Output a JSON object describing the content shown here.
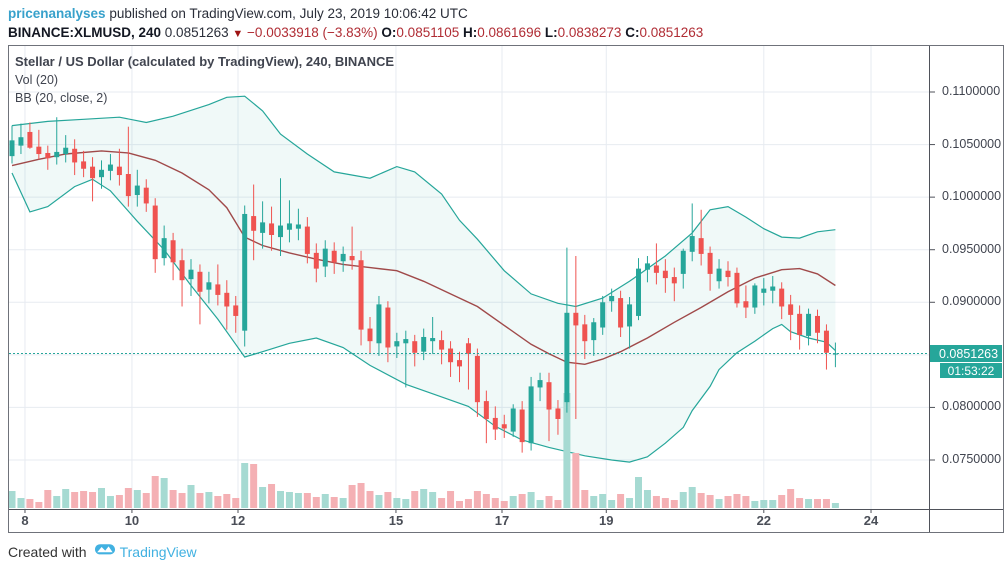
{
  "header": {
    "publisher": "pricenanalyses",
    "published_text": " published on TradingView.com, July 23, 2019 10:06:42 UTC"
  },
  "symbol_bar": {
    "symbol": "BINANCE:XLMUSD, 240",
    "price": "0.0851263",
    "arrow": "▼",
    "change": "−0.0033918 (−3.83%)",
    "o_label": "O:",
    "o_value": "0.0851105",
    "h_label": "H:",
    "h_value": "0.0861696",
    "l_label": "L:",
    "l_value": "0.0838273",
    "c_label": "C:",
    "c_value": "0.0851263"
  },
  "legend": {
    "title": "Stellar / US Dollar (calculated by TradingView), 240, BINANCE",
    "vol": "Vol (20)",
    "bb": "BB (20, close, 2)"
  },
  "price_axis": {
    "labels": [
      {
        "text": "0.1100000",
        "price": 0.11
      },
      {
        "text": "0.1050000",
        "price": 0.105
      },
      {
        "text": "0.1000000",
        "price": 0.1
      },
      {
        "text": "0.0950000",
        "price": 0.095
      },
      {
        "text": "0.0900000",
        "price": 0.09
      },
      {
        "text": "0.0800000",
        "price": 0.08
      },
      {
        "text": "0.0750000",
        "price": 0.075
      }
    ],
    "last_price_label": "0.0851263",
    "countdown": "01:53:22"
  },
  "time_axis": {
    "labels": [
      {
        "text": "8",
        "i": 1.45
      },
      {
        "text": "10",
        "i": 13.4
      },
      {
        "text": "12",
        "i": 25.25
      },
      {
        "text": "15",
        "i": 42.9
      },
      {
        "text": "17",
        "i": 54.75
      },
      {
        "text": "19",
        "i": 66.4
      },
      {
        "text": "22",
        "i": 84.0
      },
      {
        "text": "24",
        "i": 95.98
      }
    ]
  },
  "footer": {
    "created_with": "Created with",
    "brand": "TradingView"
  },
  "colors": {
    "up": "#26a69a",
    "down": "#ef5350",
    "vol_up": "#a6dad2",
    "vol_down": "#f4b0b4",
    "bb_band": "#26a69a",
    "bb_fill": "rgba(38,166,154,0.07)",
    "bb_basis": "#a04a4a",
    "grid": "#e7ebf1",
    "last_price_line": "#26a69a",
    "badge_bg": "#26a69a"
  },
  "chart_data": {
    "type": "candlestick",
    "title": "Stellar / US Dollar (calculated by TradingView), 240, BINANCE",
    "indicators": [
      "Vol (20)",
      "BB (20, close, 2)"
    ],
    "y_axis": {
      "max_price": 0.11,
      "min_price": 0.0746,
      "tick_step": 0.005
    },
    "last_price": 0.0851263,
    "grid_extra_prices": [
      0.085
    ],
    "bars": [
      [
        0.1039,
        0.1068,
        0.1032,
        0.1054
      ],
      [
        0.1049,
        0.107,
        0.1041,
        0.1057
      ],
      [
        0.1062,
        0.1071,
        0.1046,
        0.1047
      ],
      [
        0.1048,
        0.1064,
        0.1036,
        0.1041
      ],
      [
        0.1042,
        0.1049,
        0.1026,
        0.1037
      ],
      [
        0.1038,
        0.1076,
        0.1031,
        0.1043
      ],
      [
        0.1041,
        0.1059,
        0.1033,
        0.1047
      ],
      [
        0.1046,
        0.1055,
        0.1021,
        0.1033
      ],
      [
        0.1034,
        0.1044,
        0.1019,
        0.1027
      ],
      [
        0.1029,
        0.1038,
        0.0996,
        0.1018
      ],
      [
        0.1019,
        0.1035,
        0.1008,
        0.1026
      ],
      [
        0.1025,
        0.1041,
        0.1016,
        0.1031
      ],
      [
        0.1029,
        0.1046,
        0.1011,
        0.1021
      ],
      [
        0.1022,
        0.1067,
        0.0991,
        0.1001
      ],
      [
        0.1002,
        0.1026,
        0.0991,
        0.1011
      ],
      [
        0.1009,
        0.1017,
        0.0986,
        0.0994
      ],
      [
        0.0992,
        0.0999,
        0.0928,
        0.0941
      ],
      [
        0.0942,
        0.0973,
        0.0935,
        0.0961
      ],
      [
        0.0959,
        0.0966,
        0.0921,
        0.0938
      ],
      [
        0.094,
        0.0951,
        0.0896,
        0.0921
      ],
      [
        0.0922,
        0.0941,
        0.0906,
        0.0931
      ],
      [
        0.0929,
        0.0936,
        0.0879,
        0.091
      ],
      [
        0.0912,
        0.0929,
        0.0899,
        0.0919
      ],
      [
        0.0917,
        0.0936,
        0.0897,
        0.0907
      ],
      [
        0.0909,
        0.0921,
        0.0874,
        0.0896
      ],
      [
        0.0897,
        0.0906,
        0.0871,
        0.0887
      ],
      [
        0.0873,
        0.0992,
        0.0858,
        0.0984
      ],
      [
        0.0982,
        0.1012,
        0.094,
        0.0968
      ],
      [
        0.0966,
        0.0996,
        0.0951,
        0.0976
      ],
      [
        0.0975,
        0.0991,
        0.0949,
        0.0964
      ],
      [
        0.0962,
        0.1018,
        0.0944,
        0.0973
      ],
      [
        0.0969,
        0.0997,
        0.0957,
        0.0975
      ],
      [
        0.097,
        0.0989,
        0.0959,
        0.0974
      ],
      [
        0.0972,
        0.0981,
        0.0937,
        0.0946
      ],
      [
        0.0947,
        0.0956,
        0.0919,
        0.0932
      ],
      [
        0.0934,
        0.0959,
        0.0924,
        0.0951
      ],
      [
        0.0949,
        0.0957,
        0.0927,
        0.0938
      ],
      [
        0.0939,
        0.0953,
        0.0929,
        0.0946
      ],
      [
        0.0944,
        0.0972,
        0.0931,
        0.094
      ],
      [
        0.094,
        0.0949,
        0.0859,
        0.0874
      ],
      [
        0.0875,
        0.0886,
        0.0851,
        0.0863
      ],
      [
        0.0861,
        0.0906,
        0.0849,
        0.0898
      ],
      [
        0.0895,
        0.0901,
        0.0843,
        0.0857
      ],
      [
        0.0858,
        0.0871,
        0.0847,
        0.0863
      ],
      [
        0.0861,
        0.0873,
        0.0819,
        0.0865
      ],
      [
        0.0863,
        0.0869,
        0.0839,
        0.0852
      ],
      [
        0.0853,
        0.0875,
        0.0845,
        0.0867
      ],
      [
        0.0863,
        0.0886,
        0.0851,
        0.0866
      ],
      [
        0.0864,
        0.0873,
        0.0841,
        0.0855
      ],
      [
        0.0856,
        0.0863,
        0.0829,
        0.0843
      ],
      [
        0.0845,
        0.0853,
        0.0824,
        0.0839
      ],
      [
        0.0861,
        0.0866,
        0.0817,
        0.0851
      ],
      [
        0.0849,
        0.0856,
        0.0791,
        0.0805
      ],
      [
        0.0806,
        0.0816,
        0.0766,
        0.0789
      ],
      [
        0.079,
        0.0801,
        0.0769,
        0.0779
      ],
      [
        0.0784,
        0.0793,
        0.0771,
        0.078
      ],
      [
        0.0777,
        0.0803,
        0.0772,
        0.0799
      ],
      [
        0.0798,
        0.0806,
        0.0757,
        0.0767
      ],
      [
        0.0766,
        0.0829,
        0.0759,
        0.082
      ],
      [
        0.0819,
        0.0833,
        0.0806,
        0.0826
      ],
      [
        0.0824,
        0.0833,
        0.0768,
        0.0798
      ],
      [
        0.0799,
        0.0807,
        0.0774,
        0.0789
      ],
      [
        0.0805,
        0.0952,
        0.0795,
        0.089
      ],
      [
        0.089,
        0.0944,
        0.0789,
        0.0878
      ],
      [
        0.0879,
        0.0888,
        0.0846,
        0.0863
      ],
      [
        0.0864,
        0.0885,
        0.0849,
        0.0881
      ],
      [
        0.0876,
        0.0906,
        0.0869,
        0.09
      ],
      [
        0.0901,
        0.0913,
        0.0891,
        0.0906
      ],
      [
        0.0904,
        0.0911,
        0.0867,
        0.0876
      ],
      [
        0.0877,
        0.0905,
        0.0856,
        0.0898
      ],
      [
        0.0887,
        0.0942,
        0.0883,
        0.0932
      ],
      [
        0.0931,
        0.0944,
        0.0919,
        0.0937
      ],
      [
        0.0935,
        0.0956,
        0.0917,
        0.0928
      ],
      [
        0.093,
        0.0941,
        0.0909,
        0.0923
      ],
      [
        0.0924,
        0.0933,
        0.0901,
        0.0918
      ],
      [
        0.0927,
        0.0951,
        0.0913,
        0.0949
      ],
      [
        0.0948,
        0.0994,
        0.0939,
        0.0963
      ],
      [
        0.0961,
        0.0988,
        0.0935,
        0.0946
      ],
      [
        0.0947,
        0.0953,
        0.0911,
        0.0927
      ],
      [
        0.092,
        0.0941,
        0.0913,
        0.0932
      ],
      [
        0.093,
        0.0939,
        0.0915,
        0.0924
      ],
      [
        0.0928,
        0.0933,
        0.0895,
        0.0899
      ],
      [
        0.0901,
        0.0916,
        0.0885,
        0.0895
      ],
      [
        0.0895,
        0.0918,
        0.0889,
        0.0916
      ],
      [
        0.0909,
        0.0923,
        0.0897,
        0.0913
      ],
      [
        0.0911,
        0.0925,
        0.0899,
        0.0915
      ],
      [
        0.0913,
        0.0919,
        0.0884,
        0.0896
      ],
      [
        0.0898,
        0.0907,
        0.0864,
        0.0888
      ],
      [
        0.0889,
        0.0897,
        0.0855,
        0.0869
      ],
      [
        0.0868,
        0.0894,
        0.0859,
        0.0889
      ],
      [
        0.0887,
        0.0893,
        0.0861,
        0.0871
      ],
      [
        0.0873,
        0.0879,
        0.0836,
        0.0852
      ],
      [
        0.0851105,
        0.0861696,
        0.0838273,
        0.0851263
      ]
    ],
    "volumes_rel": [
      17,
      10,
      9,
      6,
      18,
      12,
      19,
      16,
      17,
      16,
      20,
      12,
      13,
      20,
      18,
      15,
      32,
      30,
      18,
      15,
      23,
      15,
      16,
      12,
      14,
      10,
      45,
      44,
      21,
      24,
      17,
      16,
      15,
      15,
      11,
      14,
      11,
      10,
      23,
      25,
      17,
      13,
      16,
      10,
      9,
      17,
      19,
      16,
      10,
      17,
      7,
      9,
      17,
      14,
      10,
      7,
      12,
      14,
      16,
      8,
      12,
      8,
      115,
      55,
      18,
      12,
      14,
      8,
      14,
      10,
      31,
      18,
      12,
      10,
      8,
      16,
      21,
      15,
      13,
      9,
      12,
      14,
      12,
      7,
      8,
      8,
      13,
      19,
      10,
      9,
      9,
      9,
      5
    ],
    "bollinger": {
      "upper": [
        [
          0,
          0.1068
        ],
        [
          4,
          0.1072
        ],
        [
          8,
          0.1074
        ],
        [
          12,
          0.1076
        ],
        [
          15,
          0.1071
        ],
        [
          18,
          0.1077
        ],
        [
          22,
          0.1088
        ],
        [
          24,
          0.1095
        ],
        [
          26,
          0.1096
        ],
        [
          28,
          0.1082
        ],
        [
          30,
          0.106
        ],
        [
          33,
          0.1041
        ],
        [
          36,
          0.1024
        ],
        [
          40,
          0.1018
        ],
        [
          43,
          0.1029
        ],
        [
          45,
          0.1024
        ],
        [
          48,
          0.1003
        ],
        [
          50,
          0.0978
        ],
        [
          52,
          0.096
        ],
        [
          55,
          0.093
        ],
        [
          58,
          0.0908
        ],
        [
          61,
          0.0899
        ],
        [
          63,
          0.0896
        ],
        [
          66,
          0.0904
        ],
        [
          69,
          0.092
        ],
        [
          73,
          0.0944
        ],
        [
          76,
          0.0966
        ],
        [
          78,
          0.0988
        ],
        [
          80,
          0.0991
        ],
        [
          82,
          0.0981
        ],
        [
          84,
          0.097
        ],
        [
          86,
          0.0962
        ],
        [
          88,
          0.0961
        ],
        [
          90,
          0.0967
        ],
        [
          92,
          0.0969
        ]
      ],
      "basis": [
        [
          0,
          0.103
        ],
        [
          3,
          0.1036
        ],
        [
          6,
          0.1041
        ],
        [
          10,
          0.1044
        ],
        [
          13,
          0.1042
        ],
        [
          16,
          0.1035
        ],
        [
          19,
          0.1023
        ],
        [
          22,
          0.1007
        ],
        [
          24,
          0.099
        ],
        [
          26,
          0.0962
        ],
        [
          28,
          0.0954
        ],
        [
          31,
          0.0947
        ],
        [
          34,
          0.0941
        ],
        [
          37,
          0.0936
        ],
        [
          40,
          0.0933
        ],
        [
          43,
          0.093
        ],
        [
          46,
          0.092
        ],
        [
          49,
          0.0908
        ],
        [
          52,
          0.0896
        ],
        [
          55,
          0.0878
        ],
        [
          58,
          0.086
        ],
        [
          60,
          0.0851
        ],
        [
          62,
          0.0843
        ],
        [
          64,
          0.0841
        ],
        [
          66,
          0.0846
        ],
        [
          68,
          0.0853
        ],
        [
          71,
          0.0866
        ],
        [
          74,
          0.0881
        ],
        [
          77,
          0.0895
        ],
        [
          80,
          0.091
        ],
        [
          83,
          0.0923
        ],
        [
          86,
          0.0931
        ],
        [
          88,
          0.0932
        ],
        [
          90,
          0.0927
        ],
        [
          92,
          0.0916
        ]
      ],
      "lower": [
        [
          0,
          0.1023
        ],
        [
          2,
          0.0986
        ],
        [
          4,
          0.0991
        ],
        [
          7,
          0.101
        ],
        [
          9,
          0.1017
        ],
        [
          11,
          0.1006
        ],
        [
          14,
          0.0977
        ],
        [
          17,
          0.095
        ],
        [
          20,
          0.0916
        ],
        [
          23,
          0.0884
        ],
        [
          25,
          0.086
        ],
        [
          26,
          0.0848
        ],
        [
          28,
          0.0853
        ],
        [
          31,
          0.0861
        ],
        [
          34,
          0.0866
        ],
        [
          37,
          0.0857
        ],
        [
          40,
          0.084
        ],
        [
          44,
          0.0822
        ],
        [
          48,
          0.081
        ],
        [
          51,
          0.0801
        ],
        [
          54,
          0.0782
        ],
        [
          57,
          0.0769
        ],
        [
          60,
          0.0762
        ],
        [
          64,
          0.0754
        ],
        [
          67,
          0.075
        ],
        [
          69,
          0.0748
        ],
        [
          71,
          0.0753
        ],
        [
          73,
          0.0766
        ],
        [
          75,
          0.0781
        ],
        [
          76,
          0.0797
        ],
        [
          78,
          0.082
        ],
        [
          79,
          0.0836
        ],
        [
          81,
          0.0852
        ],
        [
          83,
          0.0863
        ],
        [
          85,
          0.0875
        ],
        [
          86,
          0.0879
        ],
        [
          87,
          0.0872
        ],
        [
          89,
          0.0866
        ],
        [
          91,
          0.0862
        ],
        [
          92,
          0.0854
        ]
      ]
    }
  }
}
